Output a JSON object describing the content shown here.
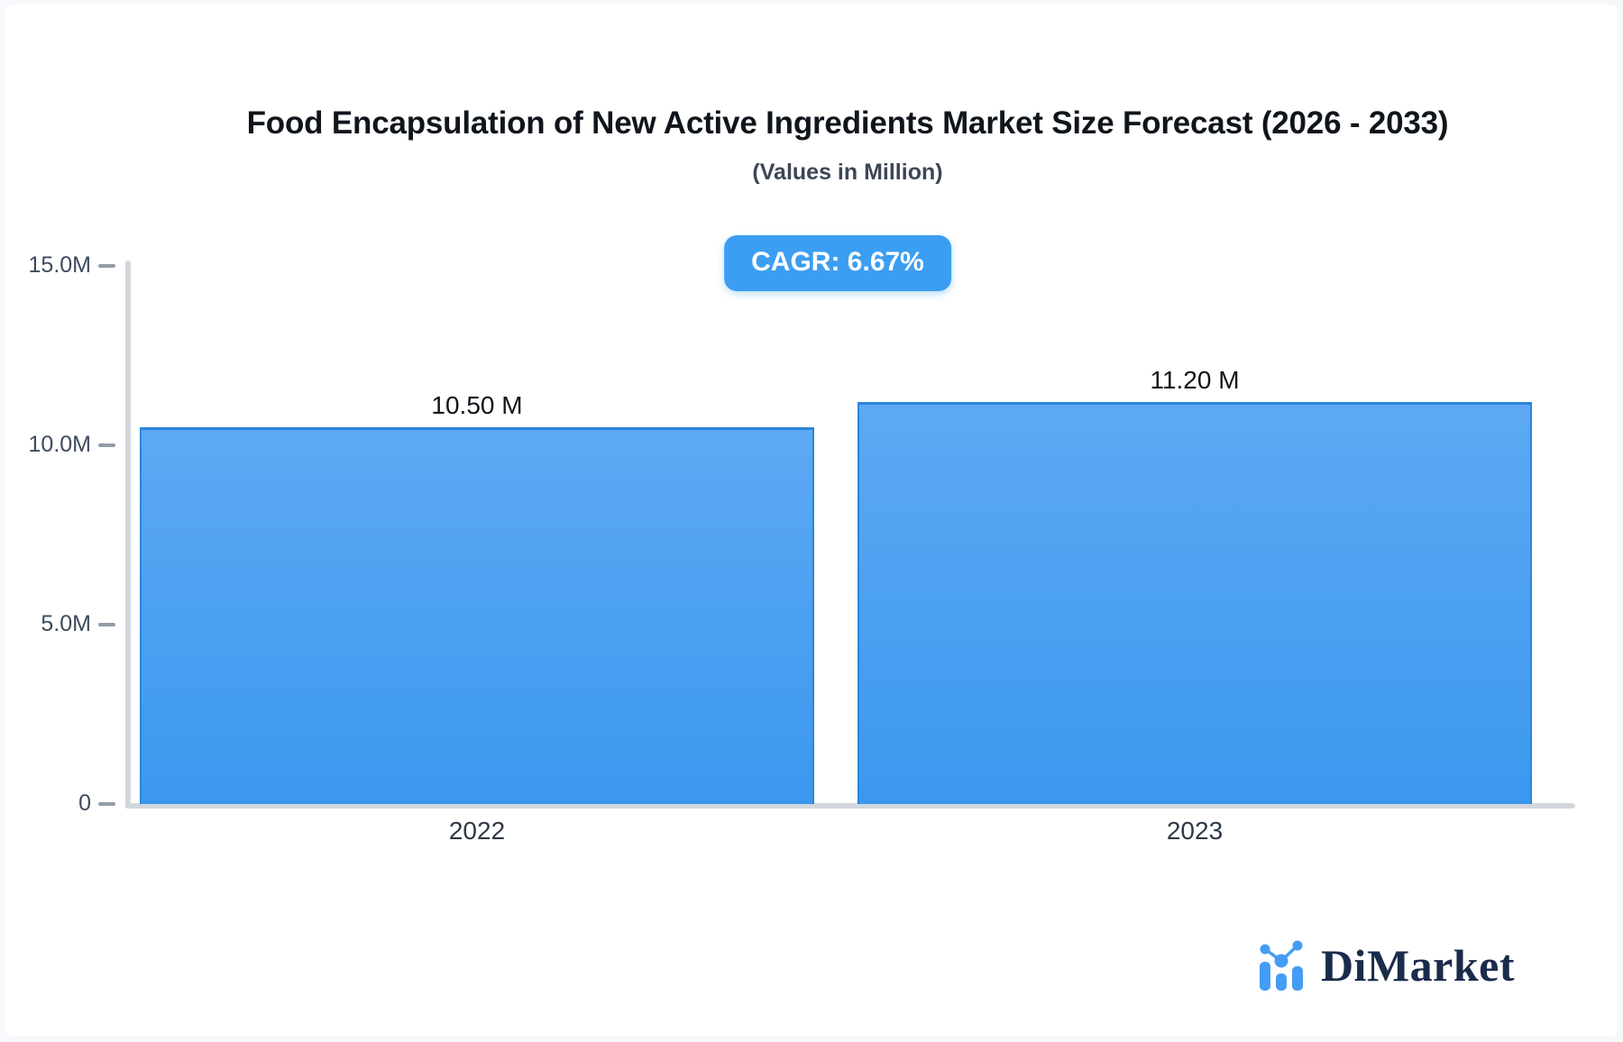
{
  "page": {
    "background": "#f7f8fb",
    "card_background": "#ffffff"
  },
  "chart_data": {
    "type": "bar",
    "title": "Food Encapsulation of New Active Ingredients Market Size Forecast (2026 - 2033)",
    "subtitle": "(Values in Million)",
    "cagr_label": "CAGR: 6.67%",
    "cagr_value": "6.67%",
    "categories": [
      "2022",
      "2023"
    ],
    "values": [
      10.5,
      11.2
    ],
    "value_labels": [
      "10.50 M",
      "11.20 M"
    ],
    "xlabel": "",
    "ylabel": "",
    "ylim": [
      0,
      15
    ],
    "y_ticks": [
      {
        "value": 15,
        "label": "15.0M"
      },
      {
        "value": 10,
        "label": "10.0M"
      },
      {
        "value": 5,
        "label": "5.0M"
      },
      {
        "value": 0,
        "label": "0"
      }
    ],
    "grid": false,
    "legend_position": "none",
    "colors": {
      "bar_gradient_top": "#5da9f3",
      "bar_gradient_bottom": "#3b98ef",
      "bar_border": "#2c85da",
      "badge_background": "#3b9ef2",
      "badge_text": "#ffffff",
      "axis_line": "#d3d7dd",
      "tick_text": "#3e4a5c",
      "label_text": "#10151c"
    }
  },
  "branding": {
    "logo_text": "DiMarket",
    "logo_icon": "bar-line-chart-icon",
    "logo_text_color": "#1b2b4b",
    "logo_icon_color": "#459cf4"
  }
}
